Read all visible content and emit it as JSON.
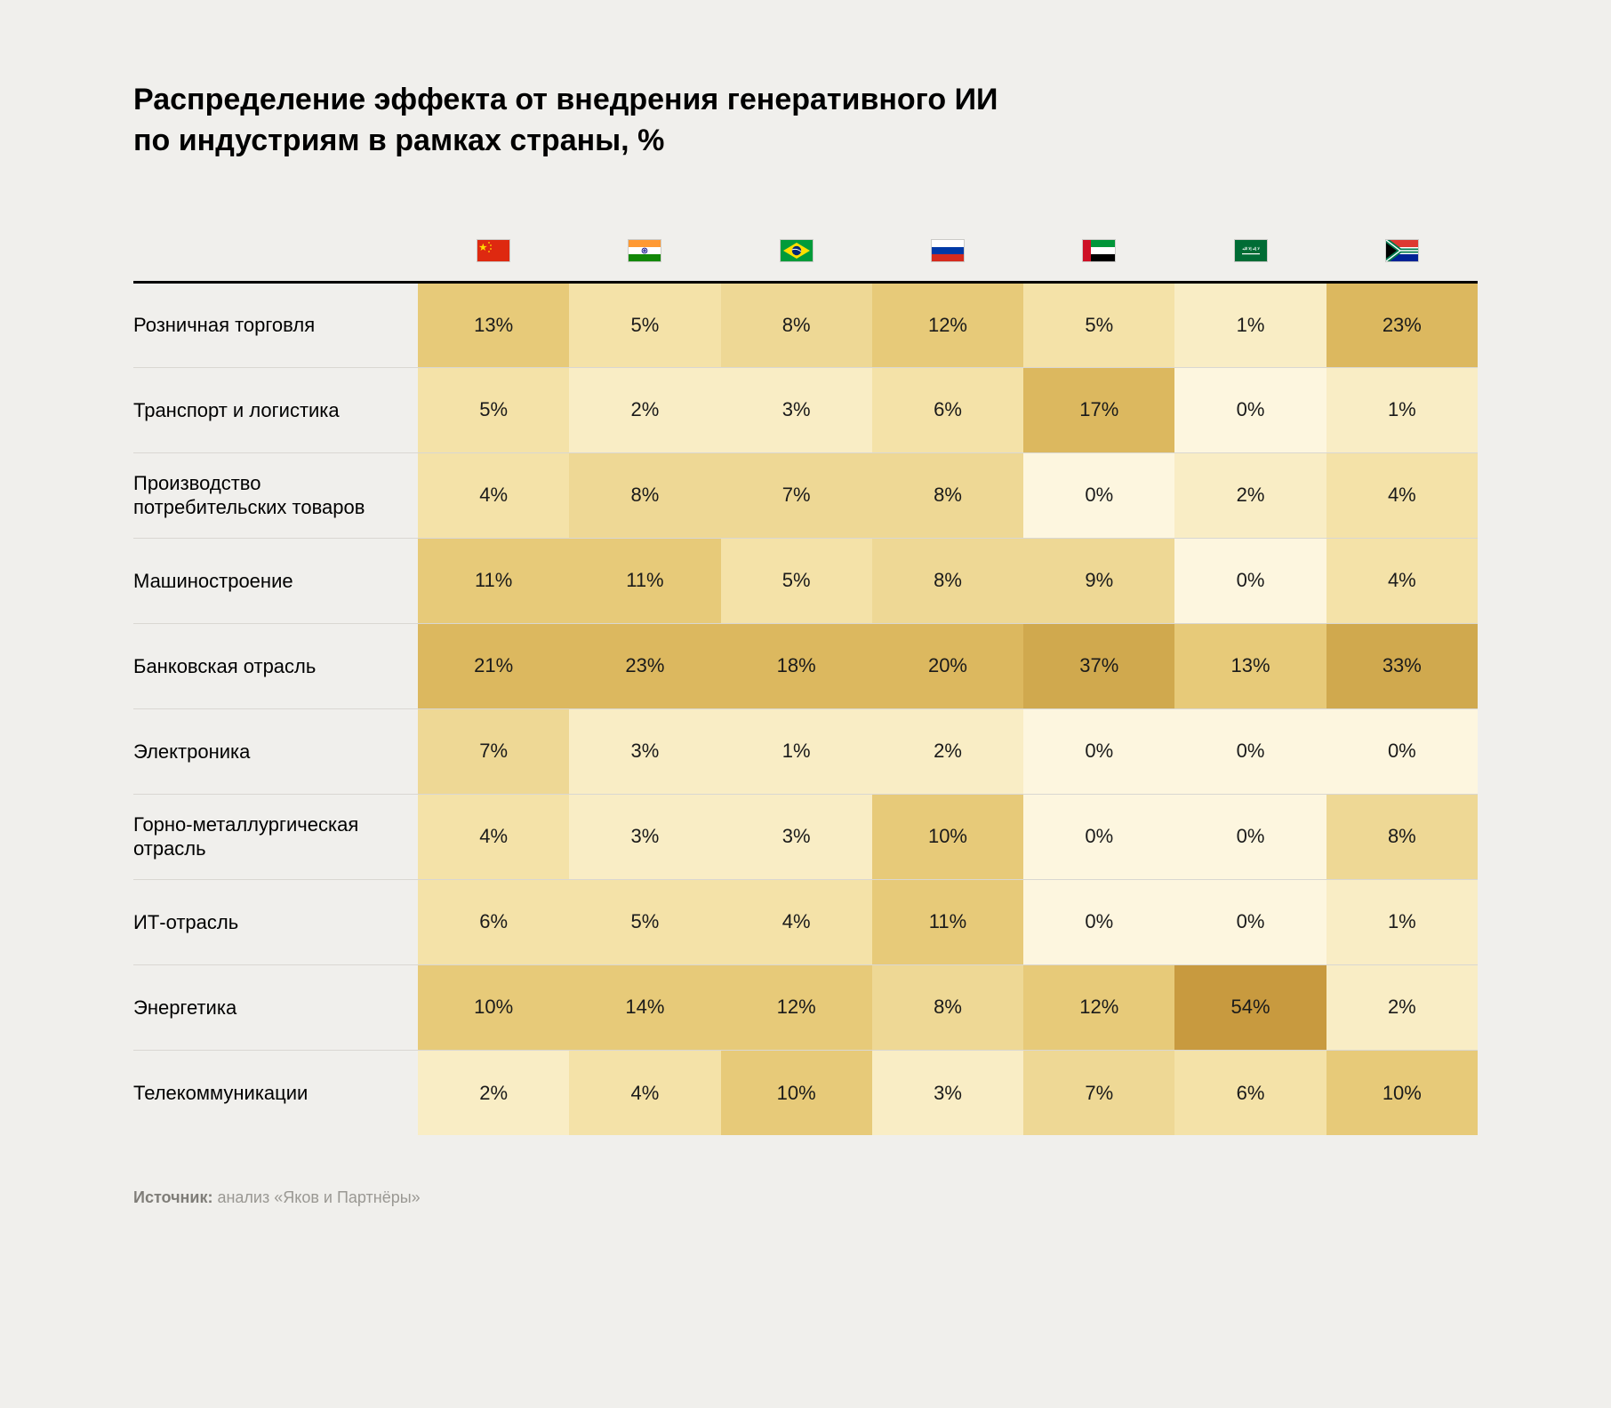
{
  "title_line1": "Распределение эффекта от внедрения генеративного ИИ",
  "title_line2": "по индустриям в рамках страны, %",
  "source_label": "Источник:",
  "source_text": " анализ «Яков и Партнёры»",
  "heatmap": {
    "type": "table-heatmap",
    "background_color": "#f0efec",
    "row_border_color": "#d9d7d2",
    "header_border_color": "#000000",
    "label_fontsize": 22,
    "title_fontsize": 34,
    "title_fontweight": 700,
    "source_fontsize": 18,
    "source_color": "#9a9893",
    "color_scale": [
      {
        "min": 0,
        "max": 0,
        "color": "#fdf6df"
      },
      {
        "min": 1,
        "max": 3,
        "color": "#f9edc5"
      },
      {
        "min": 4,
        "max": 6,
        "color": "#f4e2a8"
      },
      {
        "min": 7,
        "max": 9,
        "color": "#eed895"
      },
      {
        "min": 10,
        "max": 14,
        "color": "#e7ca79"
      },
      {
        "min": 15,
        "max": 24,
        "color": "#dcb85f"
      },
      {
        "min": 25,
        "max": 40,
        "color": "#d0a94e"
      },
      {
        "min": 41,
        "max": 100,
        "color": "#c89a3f"
      }
    ],
    "countries": [
      {
        "code": "cn",
        "name": "China"
      },
      {
        "code": "in",
        "name": "India"
      },
      {
        "code": "br",
        "name": "Brazil"
      },
      {
        "code": "ru",
        "name": "Russia"
      },
      {
        "code": "ae",
        "name": "UAE"
      },
      {
        "code": "sa",
        "name": "Saudi Arabia"
      },
      {
        "code": "za",
        "name": "South Africa"
      }
    ],
    "rows": [
      {
        "label": "Розничная торговля",
        "values": [
          13,
          5,
          8,
          12,
          5,
          1,
          23
        ]
      },
      {
        "label": "Транспорт и логистика",
        "values": [
          5,
          2,
          3,
          6,
          17,
          0,
          1
        ]
      },
      {
        "label": "Производство потребительских товаров",
        "values": [
          4,
          8,
          7,
          8,
          0,
          2,
          4
        ]
      },
      {
        "label": "Машиностроение",
        "values": [
          11,
          11,
          5,
          8,
          9,
          0,
          4
        ]
      },
      {
        "label": "Банковская отрасль",
        "values": [
          21,
          23,
          18,
          20,
          37,
          13,
          33
        ]
      },
      {
        "label": "Электроника",
        "values": [
          7,
          3,
          1,
          2,
          0,
          0,
          0
        ]
      },
      {
        "label": "Горно-металлургическая отрасль",
        "values": [
          4,
          3,
          3,
          10,
          0,
          0,
          8
        ]
      },
      {
        "label": "ИТ-отрасль",
        "values": [
          6,
          5,
          4,
          11,
          0,
          0,
          1
        ]
      },
      {
        "label": "Энергетика",
        "values": [
          10,
          14,
          12,
          8,
          12,
          54,
          2
        ]
      },
      {
        "label": "Телекоммуникации",
        "values": [
          2,
          4,
          10,
          3,
          7,
          6,
          10
        ]
      }
    ]
  }
}
